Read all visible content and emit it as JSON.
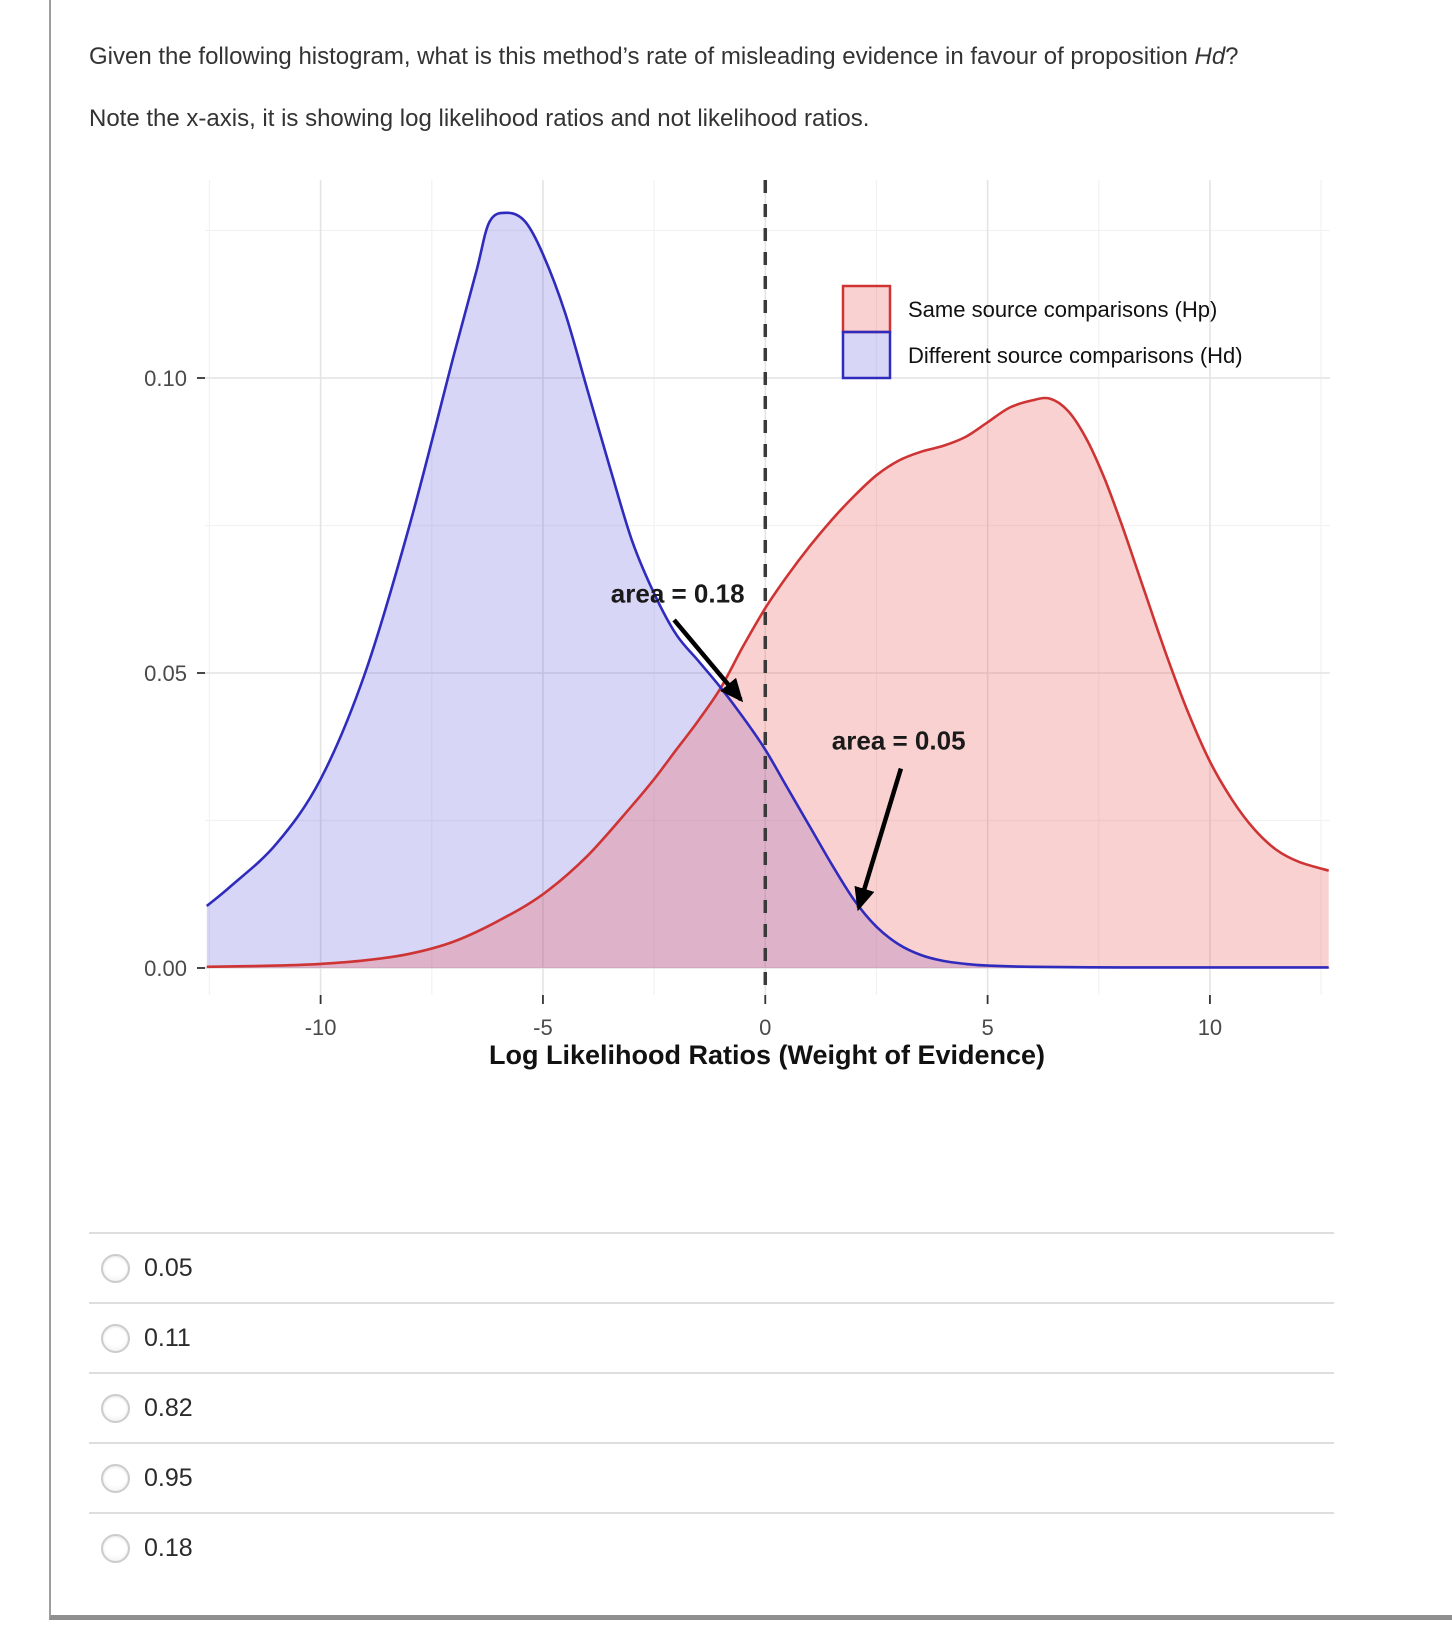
{
  "question": {
    "line1_prefix": "Given the following histogram, what is this method’s rate of misleading evidence in favour of proposition ",
    "line1_hd": "Hd",
    "line1_suffix": "?",
    "line2": "Note the x-axis, it is showing log likelihood ratios and not likelihood ratios."
  },
  "chart_data": {
    "type": "area",
    "title": "",
    "xlabel": "Log Likelihood Ratios (Weight of Evidence)",
    "ylabel": "",
    "xlim": [
      -12.6,
      12.7
    ],
    "ylim": [
      0,
      0.135
    ],
    "x_ticks": [
      -10,
      -5,
      0,
      5,
      10
    ],
    "x_tick_labels": [
      "-10",
      "-5",
      "0",
      "5",
      "10"
    ],
    "x_minor_ticks": [
      -12.5,
      -7.5,
      -2.5,
      2.5,
      7.5,
      12.5
    ],
    "y_ticks": [
      0,
      0.05,
      0.1
    ],
    "y_tick_labels": [
      "0.00",
      "0.05",
      "0.10"
    ],
    "y_minor_ticks": [
      0.025,
      0.075,
      0.125
    ],
    "grid": true,
    "legend_position": "inside-top-right",
    "reference_line_x": 0,
    "colors": {
      "hp_line": "#cf3434",
      "hp_fill": "rgba(238,90,90,0.28)",
      "hd_line": "#2f2bbd",
      "hd_fill": "rgba(92,82,218,0.24)",
      "reference_line": "#3a3a3a",
      "grid_major": "#e4e4e4",
      "grid_minor": "#f2f2f2",
      "tick_text": "#4a4a4a"
    },
    "series": [
      {
        "name": "Same source comparisons (Hp)",
        "key": "hp",
        "points": [
          [
            -12.56,
            0.0002
          ],
          [
            -11,
            0.0004
          ],
          [
            -10,
            0.0007
          ],
          [
            -9,
            0.0013
          ],
          [
            -8,
            0.0024
          ],
          [
            -7,
            0.0045
          ],
          [
            -6,
            0.008
          ],
          [
            -5,
            0.0125
          ],
          [
            -4,
            0.019
          ],
          [
            -3,
            0.0275
          ],
          [
            -2.5,
            0.032
          ],
          [
            -2,
            0.037
          ],
          [
            -1.5,
            0.042
          ],
          [
            -1,
            0.0475
          ],
          [
            -0.5,
            0.0545
          ],
          [
            0,
            0.061
          ],
          [
            0.5,
            0.0665
          ],
          [
            1,
            0.0715
          ],
          [
            1.5,
            0.076
          ],
          [
            2,
            0.08
          ],
          [
            2.5,
            0.0835
          ],
          [
            3,
            0.086
          ],
          [
            3.5,
            0.0875
          ],
          [
            4,
            0.0885
          ],
          [
            4.5,
            0.09
          ],
          [
            5,
            0.0925
          ],
          [
            5.5,
            0.095
          ],
          [
            6,
            0.0962
          ],
          [
            6.4,
            0.0965
          ],
          [
            6.8,
            0.0945
          ],
          [
            7.2,
            0.09
          ],
          [
            7.6,
            0.0835
          ],
          [
            8,
            0.0755
          ],
          [
            8.5,
            0.0645
          ],
          [
            9,
            0.0535
          ],
          [
            9.5,
            0.0435
          ],
          [
            10,
            0.035
          ],
          [
            10.5,
            0.0285
          ],
          [
            11,
            0.0235
          ],
          [
            11.5,
            0.02
          ],
          [
            12,
            0.018
          ],
          [
            12.67,
            0.0165
          ]
        ]
      },
      {
        "name": "Different source comparisons (Hd)",
        "key": "hd",
        "points": [
          [
            -12.56,
            0.0105
          ],
          [
            -12,
            0.014
          ],
          [
            -11,
            0.021
          ],
          [
            -10,
            0.032
          ],
          [
            -9,
            0.05
          ],
          [
            -8,
            0.075
          ],
          [
            -7,
            0.104
          ],
          [
            -6.5,
            0.118
          ],
          [
            -6.2,
            0.1265
          ],
          [
            -5.8,
            0.128
          ],
          [
            -5.4,
            0.1265
          ],
          [
            -5,
            0.121
          ],
          [
            -4.5,
            0.111
          ],
          [
            -4,
            0.098
          ],
          [
            -3.5,
            0.085
          ],
          [
            -3,
            0.0725
          ],
          [
            -2.5,
            0.0635
          ],
          [
            -2,
            0.0565
          ],
          [
            -1.5,
            0.052
          ],
          [
            -1,
            0.0475
          ],
          [
            -0.5,
            0.0425
          ],
          [
            0,
            0.037
          ],
          [
            0.5,
            0.0305
          ],
          [
            1,
            0.024
          ],
          [
            1.5,
            0.0175
          ],
          [
            2,
            0.0115
          ],
          [
            2.5,
            0.007
          ],
          [
            3,
            0.004
          ],
          [
            3.5,
            0.0022
          ],
          [
            4,
            0.0012
          ],
          [
            4.5,
            0.0007
          ],
          [
            5,
            0.0004
          ],
          [
            6,
            0.0002
          ],
          [
            8,
            0.0001
          ],
          [
            10,
            0.0001
          ],
          [
            12.67,
            0.0001
          ]
        ]
      }
    ],
    "annotations": [
      {
        "label": "area = 0.18",
        "text_x": -1.97,
        "text_y": 0.0635,
        "arrow_from": [
          -2.05,
          0.059
        ],
        "arrow_to": [
          -0.55,
          0.0455
        ]
      },
      {
        "label": "area = 0.05",
        "text_x": 3.0,
        "text_y": 0.0386,
        "arrow_from": [
          3.05,
          0.0338
        ],
        "arrow_to": [
          2.1,
          0.0102
        ]
      }
    ]
  },
  "options": [
    "0.05",
    "0.11",
    "0.82",
    "0.95",
    "0.18"
  ]
}
